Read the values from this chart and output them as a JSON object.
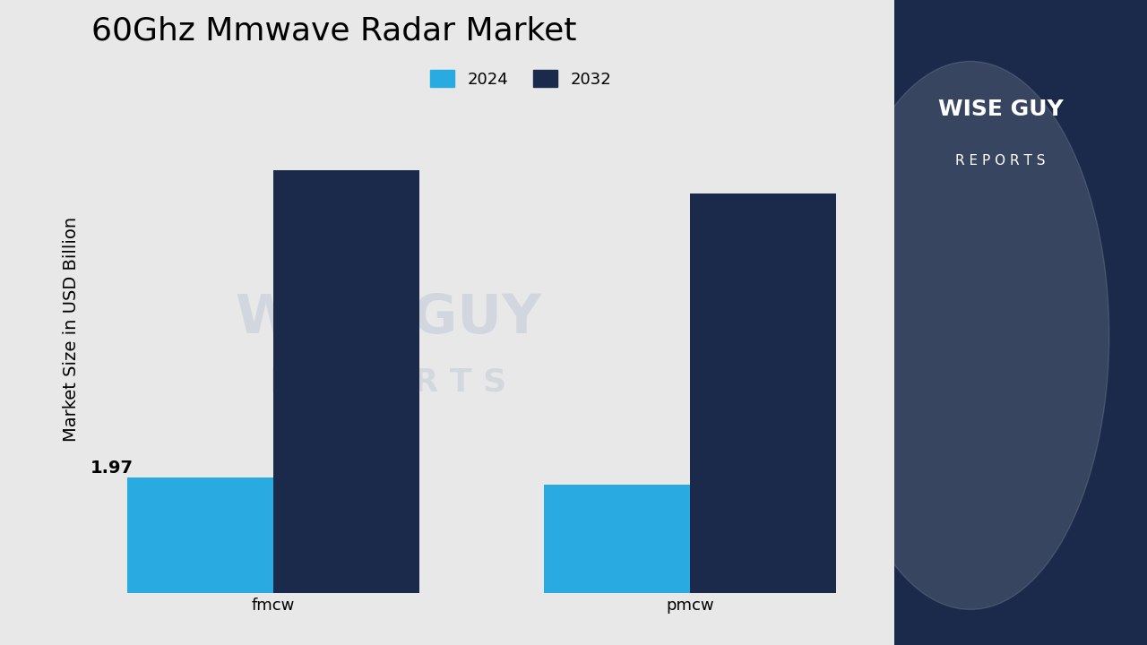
{
  "title": "60Ghz Mmwave Radar Market",
  "ylabel": "Market Size in USD Billion",
  "categories": [
    "fmcw",
    "pmcw"
  ],
  "series": {
    "2024": [
      1.97,
      1.85
    ],
    "2032": [
      7.2,
      6.8
    ]
  },
  "bar_colors": {
    "2024": "#29ABE2",
    "2032": "#1B2A4A"
  },
  "annotation_value": "1.97",
  "title_fontsize": 26,
  "ylabel_fontsize": 14,
  "legend_fontsize": 13,
  "tick_fontsize": 13,
  "annotation_fontsize": 14,
  "bg_color": "#E8E8E8",
  "right_panel_color": "#1B2A4A",
  "bar_width": 0.35,
  "ylim": [
    0,
    9
  ],
  "legend_labels": [
    "2024",
    "2032"
  ]
}
